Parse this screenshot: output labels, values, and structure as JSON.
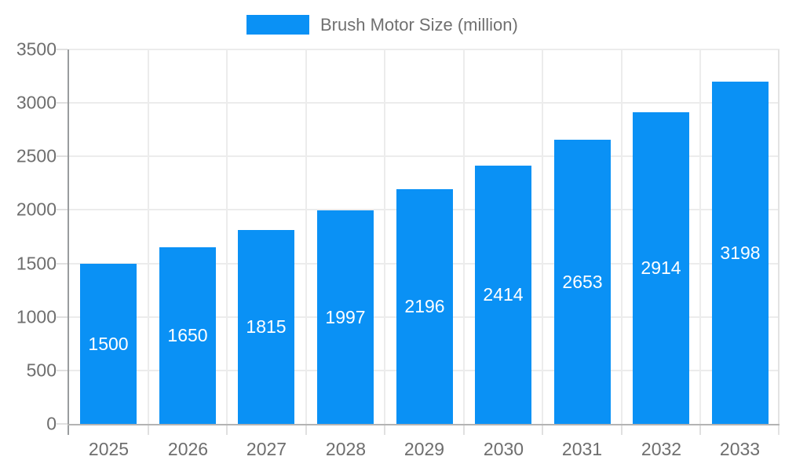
{
  "chart_data": {
    "type": "bar",
    "title": "",
    "legend": "Brush Motor Size (million)",
    "series_name": "Brush Motor Size (million)",
    "categories": [
      "2025",
      "2026",
      "2027",
      "2028",
      "2029",
      "2030",
      "2031",
      "2032",
      "2033"
    ],
    "values": [
      1500,
      1650,
      1815,
      1997,
      2196,
      2414,
      2653,
      2914,
      3198
    ],
    "xlabel": "",
    "ylabel": "",
    "ylim": [
      0,
      3500
    ],
    "yticks": [
      0,
      500,
      1000,
      1500,
      2000,
      2500,
      3000,
      3500
    ],
    "grid": true,
    "legend_position": "top",
    "value_labels": "inside-center, white",
    "colors": {
      "bar": "#0a91f5",
      "bar_label": "#ffffff",
      "axis_text": "#6e6e6e",
      "legend_text": "#707070",
      "grid_line": "#ececec",
      "outer_tick": "#e0e0e0",
      "y_axis_line": "#999c9e",
      "x_axis_line": "#b3b3b3",
      "right_border": "#e3e3e3",
      "background": "#ffffff"
    }
  }
}
